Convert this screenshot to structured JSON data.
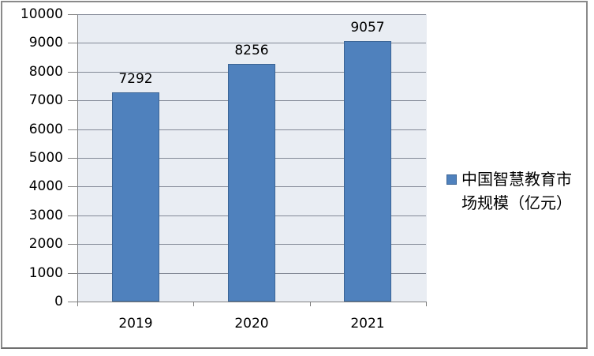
{
  "chart_data": {
    "type": "bar",
    "title": "",
    "categories": [
      "2019",
      "2020",
      "2021"
    ],
    "series": [
      {
        "name": "中国智慧教育市场规模（亿元）",
        "values": [
          7292,
          8256,
          9057
        ]
      }
    ],
    "value_labels": [
      "7292",
      "8256",
      "9057"
    ],
    "xlabel": "",
    "ylabel": "",
    "ylim": [
      0,
      10000
    ],
    "ytick_step": 1000,
    "grid": true,
    "legend_position": "right",
    "colors": {
      "bar_fill": "#4f81bd",
      "bar_border": "#3c6595",
      "plot_background": "#e9edf3",
      "gridline": "#838996",
      "axis": "#808080",
      "frame_border": "#8a8a8a",
      "text": "#000000"
    }
  },
  "legend": {
    "label": "中国智慧教育市场规模（亿元）"
  }
}
